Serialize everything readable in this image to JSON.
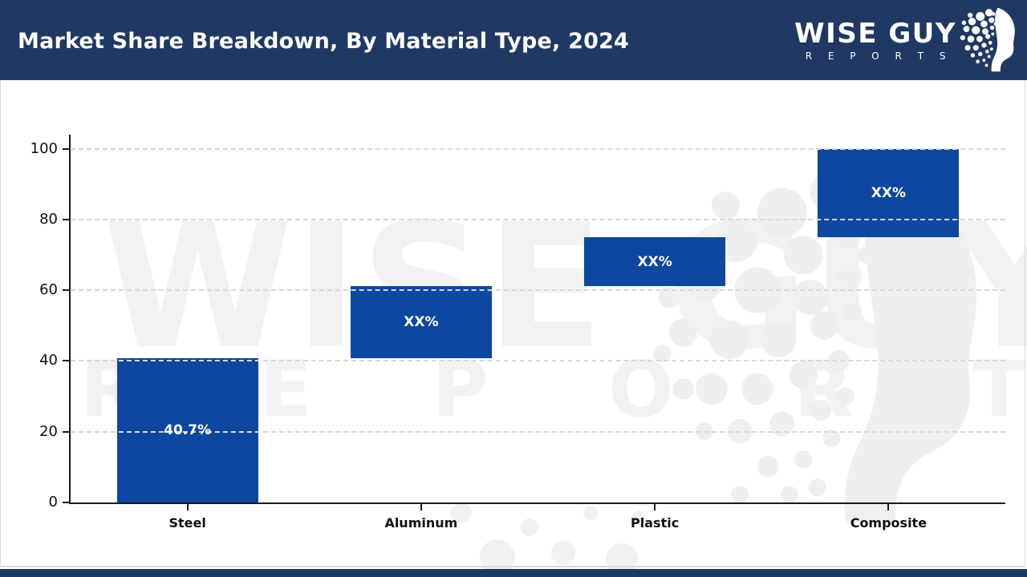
{
  "header": {
    "title": "Market Share Breakdown, By Material Type, 2024",
    "bg_color": "#1F3864",
    "logo": {
      "name_line": "WISE GUY",
      "reports_line": "R E P O R T S"
    }
  },
  "watermark": {
    "line1": "WISE GUY",
    "line2": "R E P O R T S"
  },
  "chart_data": {
    "type": "bar",
    "subtype": "waterfall",
    "title": "Market Share Breakdown, By Material Type, 2024",
    "categories": [
      "Steel",
      "Aluminum",
      "Plastic",
      "Composite"
    ],
    "segments": [
      {
        "category": "Steel",
        "start": 0,
        "end": 40.7,
        "label": "40.7%"
      },
      {
        "category": "Aluminum",
        "start": 40.7,
        "end": 61.1,
        "label": "XX%"
      },
      {
        "category": "Plastic",
        "start": 61.1,
        "end": 74.9,
        "label": "XX%"
      },
      {
        "category": "Composite",
        "start": 74.9,
        "end": 100,
        "label": "XX%"
      }
    ],
    "yticks": [
      0,
      20,
      40,
      60,
      80,
      100
    ],
    "ylim": [
      0,
      104
    ],
    "grid": "horizontal-dashed",
    "legend": "none",
    "bar_color": "#0D47A0",
    "bar_label_color": "#FFFFFF",
    "axis_color": "#1A1A1A",
    "grid_color": "#D8D8D8"
  },
  "footer": {
    "bar_color": "#1F3864"
  }
}
